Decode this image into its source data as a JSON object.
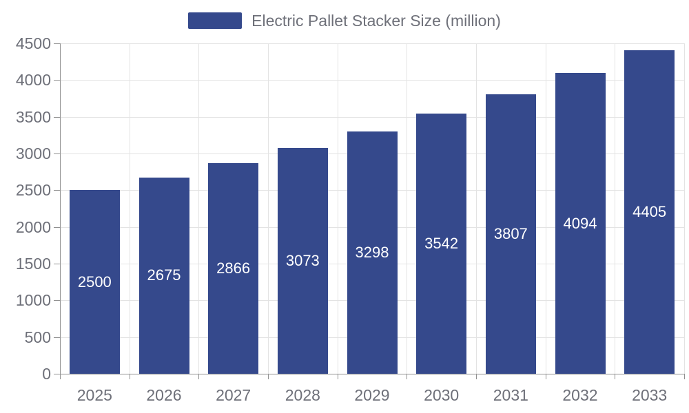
{
  "chart_data": {
    "type": "bar",
    "title": "",
    "categories": [
      "2025",
      "2026",
      "2027",
      "2028",
      "2029",
      "2030",
      "2031",
      "2032",
      "2033"
    ],
    "series": [
      {
        "name": "Electric Pallet Stacker Size (million)",
        "values": [
          2500,
          2675,
          2866,
          3073,
          3298,
          3542,
          3807,
          4094,
          4405
        ]
      }
    ],
    "xlabel": "",
    "ylabel": "",
    "ylim": [
      0,
      4500
    ],
    "yticks": [
      0,
      500,
      1000,
      1500,
      2000,
      2500,
      3000,
      3500,
      4000,
      4500
    ],
    "grid": true,
    "legend_position": "top",
    "value_labels": "inside-center"
  },
  "colors": {
    "bar": "#35498c",
    "axis_text": "#6e7079",
    "value_text": "#ffffff",
    "grid_line": "#e3e3e3",
    "axis_line": "#909090",
    "background": "#ffffff"
  }
}
